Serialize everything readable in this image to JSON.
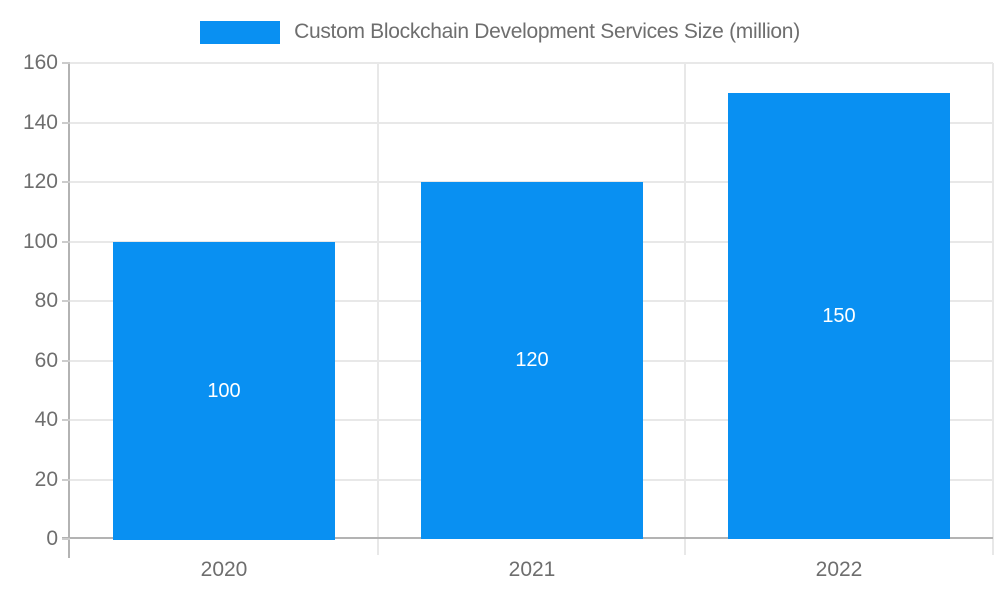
{
  "chart_data": {
    "type": "bar",
    "title": "Custom Blockchain Development Services Size (million)",
    "legend": [
      "Custom Blockchain Development Services Size (million)"
    ],
    "legend_position": "top",
    "categories": [
      "2020",
      "2021",
      "2022"
    ],
    "series": [
      {
        "name": "Custom Blockchain Development Services Size (million)",
        "values": [
          100,
          120,
          150
        ],
        "data_labels": [
          "100",
          "120",
          "150"
        ]
      }
    ],
    "xlabel": "",
    "ylabel": "",
    "ylim": [
      0,
      160
    ],
    "ytick_step": 20,
    "ytick_labels": [
      "0",
      "20",
      "40",
      "60",
      "80",
      "100",
      "120",
      "140",
      "160"
    ],
    "grid": true
  },
  "colors": {
    "bar": "#0990f2",
    "axis_line": "#b3b3b3",
    "grid_line": "#e8e8e8",
    "tick_line": "#cccccc",
    "axis_text": "#6e6e6e",
    "value_label_text": "#ffffff",
    "background": "#ffffff"
  }
}
